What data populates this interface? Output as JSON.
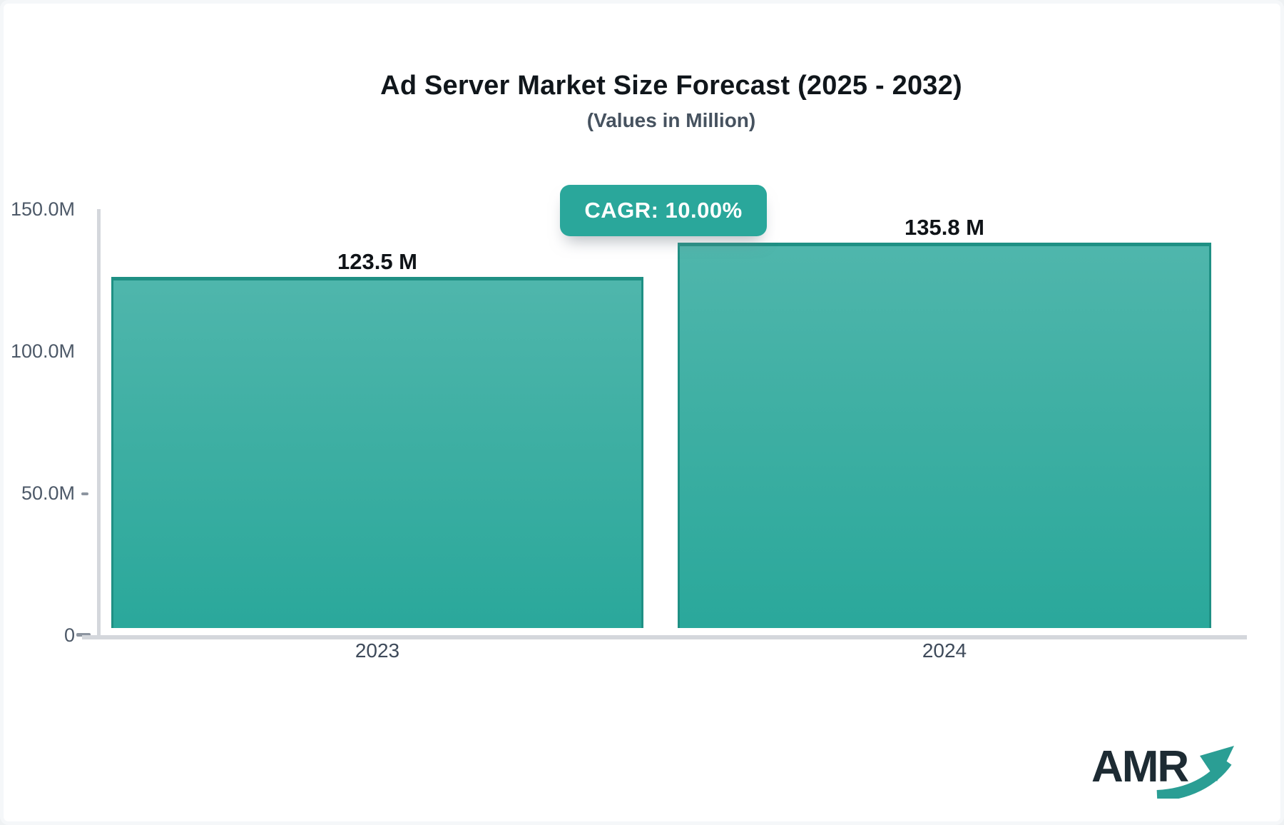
{
  "chart_data": {
    "type": "bar",
    "title": "Ad Server Market Size Forecast (2025 - 2032)",
    "subtitle": "(Values in Million)",
    "badge_label": "CAGR: 10.00%",
    "categories": [
      "2023",
      "2024"
    ],
    "values": [
      123.5,
      135.8
    ],
    "value_labels": [
      "123.5 M",
      "135.8 M"
    ],
    "unit": "Million",
    "ylim": [
      0,
      150
    ],
    "ytick_labels": [
      "150.0M",
      "100.0M",
      "50.0M",
      "0"
    ],
    "grid": false,
    "legend": false,
    "colors": {
      "bar_fill_top": "#4FB6AC",
      "bar_fill_bottom": "#2AA89B",
      "bar_border": "#1F9084",
      "badge_background": "#2AA79B",
      "badge_text": "#FFFFFF",
      "axis_line": "#D4D7DC",
      "title_text": "#10161B",
      "axis_label_text": "#4D5968"
    }
  },
  "logo": {
    "text": "AMR",
    "text_color": "#1D2B33",
    "arrow_color": "#2A9E94"
  }
}
